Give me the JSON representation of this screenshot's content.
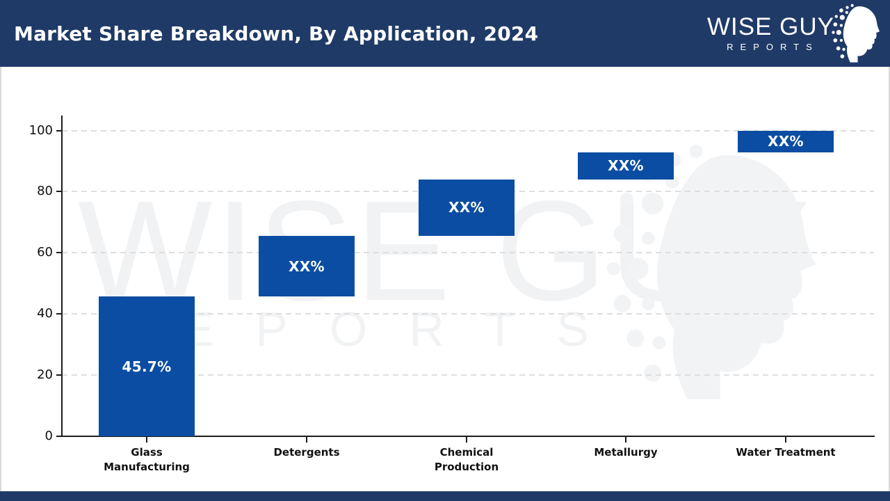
{
  "header": {
    "title": "Market Share Breakdown, By Application, 2024",
    "logo": {
      "line1": "WISE GUY",
      "line2": "REPORTS"
    }
  },
  "watermark": {
    "line1": "WISE GUY",
    "line2": "REPORTS"
  },
  "chart_data": {
    "type": "bar",
    "subtype": "waterfall",
    "categories": [
      {
        "name": "Glass Manufacturing",
        "lines": [
          "Glass",
          "Manufacturing"
        ]
      },
      {
        "name": "Detergents",
        "lines": [
          "Detergents"
        ]
      },
      {
        "name": "Chemical Production",
        "lines": [
          "Chemical",
          "Production"
        ]
      },
      {
        "name": "Metallurgy",
        "lines": [
          "Metallurgy"
        ]
      },
      {
        "name": "Water Treatment",
        "lines": [
          "Water Treatment"
        ]
      }
    ],
    "segments": [
      {
        "label": "45.7%",
        "start": 0.0,
        "end": 45.7
      },
      {
        "label": "XX%",
        "start": 45.7,
        "end": 65.5
      },
      {
        "label": "XX%",
        "start": 65.5,
        "end": 84.0
      },
      {
        "label": "XX%",
        "start": 84.0,
        "end": 92.9
      },
      {
        "label": "XX%",
        "start": 92.9,
        "end": 100.0
      }
    ],
    "yticks": [
      0,
      20,
      40,
      60,
      80,
      100
    ],
    "ylim": [
      0,
      105
    ],
    "xlabel": "",
    "ylabel": "",
    "grid": "dashed-horizontal",
    "legend": "none",
    "bar_color": "#0b4da2"
  },
  "colors": {
    "header_bg": "#1f3a67",
    "footer_bg": "#1f3a67",
    "bar": "#0b4da2",
    "grid": "#dedede",
    "axis": "#1c1c1c",
    "watermark": "#f1f2f4",
    "title_text": "#ffffff",
    "tick_text": "#111111"
  }
}
